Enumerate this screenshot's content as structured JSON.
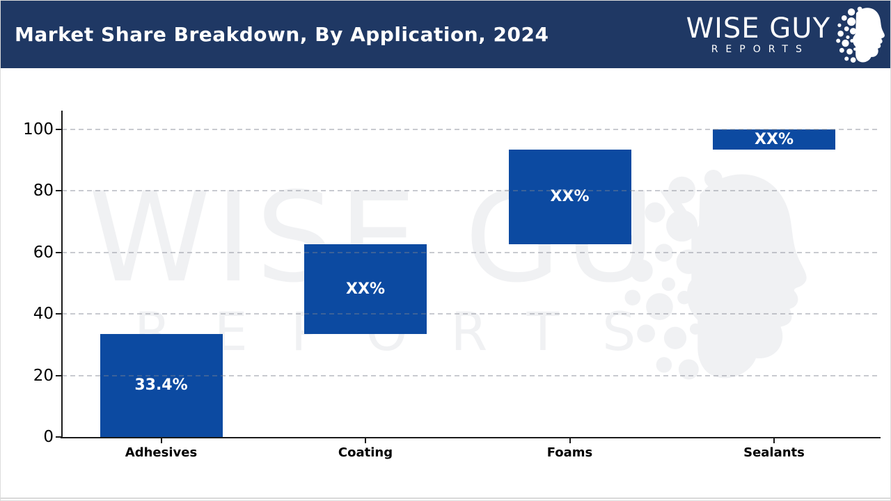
{
  "header": {
    "title": "Market Share Breakdown, By Application, 2024",
    "bg_color": "#1f3864",
    "logo": {
      "line1": "WISE GUY",
      "line2": "REPORTS"
    }
  },
  "watermark": {
    "line1": "WISE GUY",
    "line2": "REPORTS"
  },
  "chart_data": {
    "type": "bar",
    "subtype": "waterfall",
    "title": "Market Share Breakdown, By Application, 2024",
    "categories": [
      "Adhesives",
      "Coating",
      "Foams",
      "Sealants"
    ],
    "segments": [
      {
        "category": "Adhesives",
        "start": 0,
        "end": 33.4,
        "value_label": "33.4%"
      },
      {
        "category": "Coating",
        "start": 33.4,
        "end": 62.7,
        "value_label": "XX%"
      },
      {
        "category": "Foams",
        "start": 62.7,
        "end": 93.4,
        "value_label": "XX%"
      },
      {
        "category": "Sealants",
        "start": 93.4,
        "end": 100,
        "value_label": "XX%"
      }
    ],
    "ylim": [
      0,
      100
    ],
    "yticks": [
      "0",
      "20",
      "40",
      "60",
      "80",
      "100"
    ],
    "xlabel": "",
    "ylabel": "",
    "grid": "horizontal-dashed-over-bars",
    "legend": "none",
    "bar_color": "#0c4aa1",
    "value_label_color": "#ffffff"
  }
}
